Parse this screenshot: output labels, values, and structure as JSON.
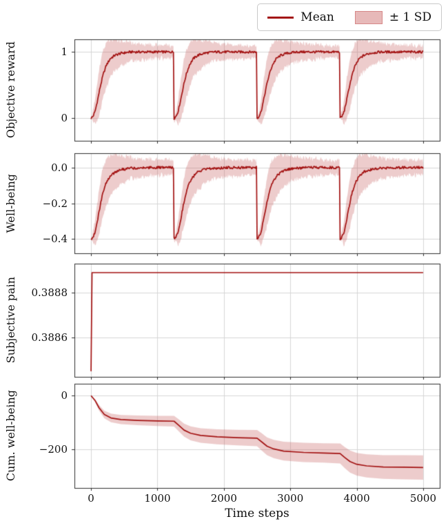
{
  "figure": {
    "background": "#ffffff"
  },
  "legend": {
    "mean_label": "Mean",
    "sd_label": "± 1 SD"
  },
  "colors": {
    "mean": "#a31212",
    "band": "#c85f5f",
    "band_alpha": 0.32,
    "grid": "#d6d6d6",
    "spine": "#2e2e2e",
    "text": "#111111"
  },
  "x_axis": {
    "label": "Time steps",
    "range": [
      -250,
      5250
    ],
    "ticks": [
      0,
      1000,
      2000,
      3000,
      4000,
      5000
    ],
    "tick_labels": [
      "0",
      "1000",
      "2000",
      "3000",
      "4000",
      "5000"
    ]
  },
  "chart_data": [
    {
      "type": "line",
      "ylabel": "Objective reward",
      "ylim": [
        -0.34,
        1.19
      ],
      "yticks": [
        1,
        0
      ],
      "ytick_labels": [
        "1",
        "0"
      ],
      "noise": 0.018,
      "x": [
        0,
        30,
        60,
        100,
        140,
        180,
        230,
        290,
        360,
        450,
        600,
        800,
        1000,
        1249,
        1250,
        1280,
        1310,
        1350,
        1390,
        1430,
        1480,
        1540,
        1610,
        1700,
        1850,
        2050,
        2250,
        2499,
        2500,
        2530,
        2560,
        2600,
        2640,
        2680,
        2730,
        2790,
        2860,
        2950,
        3100,
        3300,
        3500,
        3749,
        3750,
        3780,
        3810,
        3850,
        3890,
        3930,
        3980,
        4040,
        4110,
        4200,
        4350,
        4550,
        4750,
        4999,
        5000
      ],
      "mean": [
        0,
        0.03,
        0.1,
        0.28,
        0.48,
        0.65,
        0.8,
        0.9,
        0.95,
        0.98,
        1.0,
        1.0,
        1.0,
        1.0,
        0,
        0.03,
        0.1,
        0.28,
        0.48,
        0.65,
        0.8,
        0.9,
        0.95,
        0.98,
        1.0,
        1.0,
        1.0,
        1.0,
        0,
        0.03,
        0.1,
        0.28,
        0.48,
        0.65,
        0.8,
        0.9,
        0.95,
        0.98,
        1.0,
        1.0,
        1.0,
        1.0,
        0,
        0.03,
        0.1,
        0.28,
        0.48,
        0.65,
        0.8,
        0.9,
        0.95,
        0.98,
        1.0,
        1.0,
        1.0,
        1.0,
        1.0
      ],
      "sd": [
        0.02,
        0.08,
        0.18,
        0.3,
        0.36,
        0.36,
        0.34,
        0.28,
        0.24,
        0.19,
        0.14,
        0.12,
        0.1,
        0.09,
        0.02,
        0.08,
        0.18,
        0.3,
        0.36,
        0.36,
        0.34,
        0.28,
        0.24,
        0.19,
        0.14,
        0.12,
        0.1,
        0.09,
        0.02,
        0.08,
        0.18,
        0.3,
        0.36,
        0.36,
        0.34,
        0.28,
        0.24,
        0.19,
        0.14,
        0.12,
        0.1,
        0.09,
        0.02,
        0.08,
        0.18,
        0.3,
        0.36,
        0.36,
        0.34,
        0.28,
        0.24,
        0.19,
        0.14,
        0.12,
        0.1,
        0.09,
        0.09
      ]
    },
    {
      "type": "line",
      "ylabel": "Well-being",
      "ylim": [
        -0.48,
        0.08
      ],
      "yticks": [
        0.0,
        -0.2,
        -0.4
      ],
      "ytick_labels": [
        "0.0",
        "−0.2",
        "−0.4"
      ],
      "noise": 0.007,
      "x": [
        0,
        30,
        60,
        100,
        140,
        180,
        230,
        290,
        360,
        450,
        600,
        800,
        1000,
        1249,
        1250,
        1280,
        1310,
        1350,
        1390,
        1430,
        1480,
        1540,
        1610,
        1700,
        1850,
        2050,
        2250,
        2499,
        2500,
        2530,
        2560,
        2600,
        2640,
        2680,
        2730,
        2790,
        2860,
        2950,
        3100,
        3300,
        3500,
        3749,
        3750,
        3780,
        3810,
        3850,
        3890,
        3930,
        3980,
        4040,
        4110,
        4200,
        4350,
        4550,
        4750,
        4999,
        5000
      ],
      "mean": [
        -0.4,
        -0.388,
        -0.36,
        -0.29,
        -0.21,
        -0.14,
        -0.085,
        -0.05,
        -0.025,
        -0.012,
        -0.004,
        0,
        0,
        0,
        -0.4,
        -0.388,
        -0.36,
        -0.29,
        -0.21,
        -0.14,
        -0.085,
        -0.05,
        -0.025,
        -0.012,
        -0.004,
        0,
        0,
        0,
        -0.4,
        -0.388,
        -0.36,
        -0.29,
        -0.21,
        -0.14,
        -0.085,
        -0.05,
        -0.025,
        -0.012,
        -0.004,
        0,
        0,
        0,
        -0.4,
        -0.388,
        -0.36,
        -0.29,
        -0.21,
        -0.14,
        -0.085,
        -0.05,
        -0.025,
        -0.012,
        -0.004,
        0,
        0,
        0,
        0
      ],
      "sd": [
        0.008,
        0.03,
        0.07,
        0.11,
        0.13,
        0.14,
        0.13,
        0.115,
        0.1,
        0.08,
        0.06,
        0.05,
        0.045,
        0.04,
        0.008,
        0.03,
        0.07,
        0.11,
        0.13,
        0.14,
        0.13,
        0.115,
        0.1,
        0.08,
        0.06,
        0.05,
        0.045,
        0.04,
        0.008,
        0.03,
        0.07,
        0.11,
        0.13,
        0.14,
        0.13,
        0.115,
        0.1,
        0.08,
        0.06,
        0.05,
        0.045,
        0.04,
        0.008,
        0.03,
        0.07,
        0.11,
        0.13,
        0.14,
        0.13,
        0.115,
        0.1,
        0.08,
        0.06,
        0.05,
        0.045,
        0.04,
        0.04
      ]
    },
    {
      "type": "line",
      "ylabel": "Subjective pain",
      "ylim": [
        0.388425,
        0.38893
      ],
      "yticks": [
        0.3888,
        0.3886
      ],
      "ytick_labels": [
        "0.3888",
        "0.3886"
      ],
      "noise": 0,
      "x": [
        0,
        15,
        5000
      ],
      "mean": [
        0.38845,
        0.38889,
        0.38889
      ]
    },
    {
      "type": "line",
      "ylabel": "Cum. well-being",
      "ylim": [
        -343,
        44
      ],
      "yticks": [
        0,
        -200
      ],
      "ytick_labels": [
        "0",
        "−200"
      ],
      "noise": 0,
      "x": [
        0,
        60,
        120,
        200,
        300,
        450,
        700,
        1000,
        1250,
        1320,
        1400,
        1500,
        1650,
        1900,
        2200,
        2500,
        2570,
        2650,
        2750,
        2900,
        3200,
        3500,
        3750,
        3820,
        3900,
        4000,
        4150,
        4400,
        4700,
        5000
      ],
      "mean": [
        0,
        -18,
        -45,
        -70,
        -83,
        -89,
        -92,
        -94,
        -95,
        -110,
        -128,
        -140,
        -148,
        -153,
        -156,
        -158,
        -172,
        -188,
        -198,
        -206,
        -211,
        -213,
        -215,
        -230,
        -245,
        -255,
        -261,
        -265,
        -266,
        -267
      ],
      "sd": [
        0,
        5,
        10,
        14,
        16,
        17,
        18,
        19,
        20,
        22,
        24,
        26,
        27,
        28,
        29,
        30,
        32,
        33,
        34,
        35,
        36,
        36,
        37,
        39,
        41,
        42,
        43,
        44,
        45,
        45
      ]
    }
  ]
}
